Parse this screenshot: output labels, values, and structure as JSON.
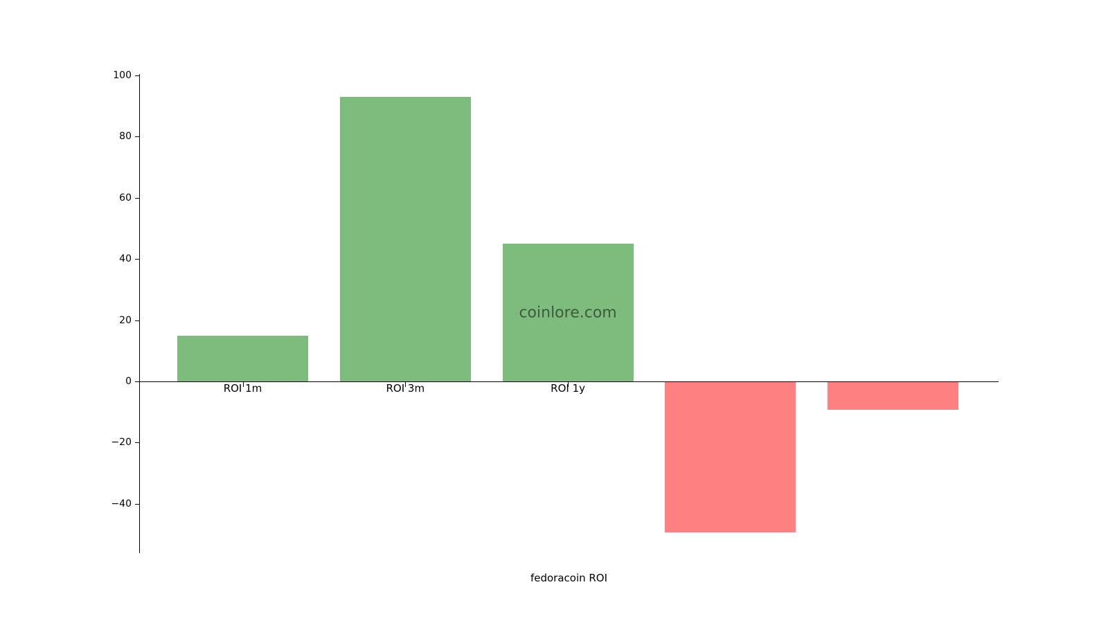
{
  "page": {
    "background": "#ffffff"
  },
  "watermark": {
    "text": "coinlore.com"
  },
  "chart_data": {
    "type": "bar",
    "title": "",
    "xlabel": "fedoracoin ROI",
    "ylabel": "",
    "categories": [
      "ROI 1m",
      "ROI 3m",
      "ROI 1y",
      "",
      ""
    ],
    "values": [
      15,
      93,
      45,
      -49,
      -9
    ],
    "bar_colors": [
      "#7ebc7e",
      "#7ebc7e",
      "#7ebc7e",
      "#ff8080",
      "#ff8080"
    ],
    "colors": {
      "positive": "#7ebc7e",
      "negative": "#ff8080",
      "axis": "#000000",
      "text": "#000000"
    },
    "yticks": [
      {
        "value": 100,
        "label": "100"
      },
      {
        "value": 80,
        "label": "80"
      },
      {
        "value": 60,
        "label": "60"
      },
      {
        "value": 40,
        "label": "40"
      },
      {
        "value": 20,
        "label": "20"
      },
      {
        "value": 0,
        "label": "0"
      },
      {
        "value": -20,
        "label": "−20"
      },
      {
        "value": -40,
        "label": "−40"
      }
    ],
    "ylim": [
      -56,
      100
    ],
    "grid": false,
    "legend": null
  }
}
